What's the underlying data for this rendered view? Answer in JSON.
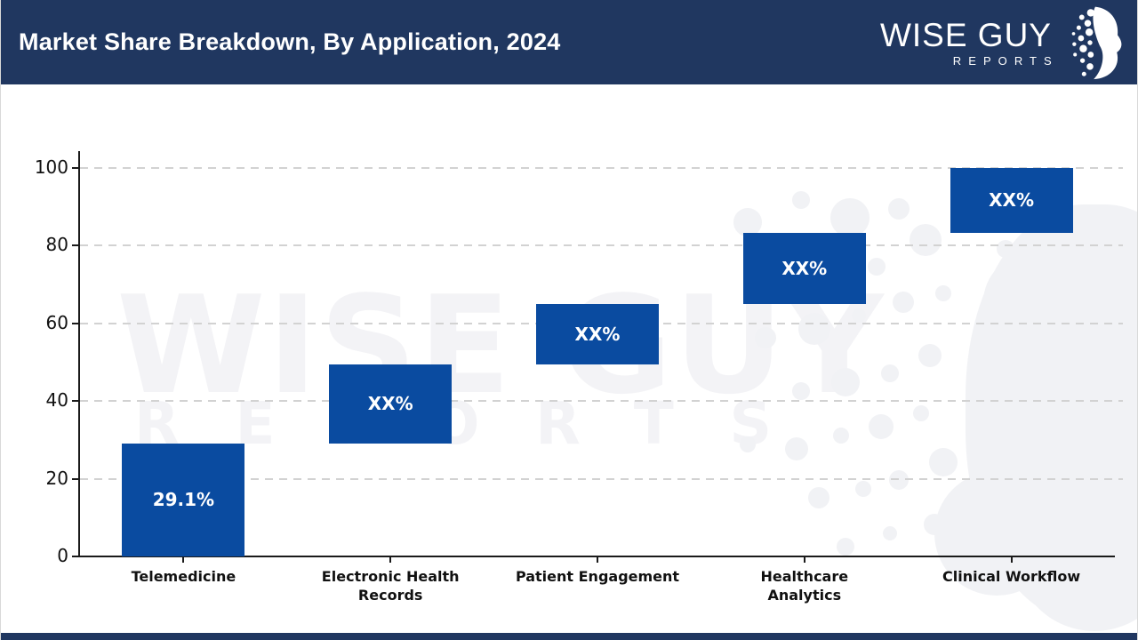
{
  "header": {
    "title": "Market Share Breakdown, By Application, 2024",
    "brand": {
      "line1": "WISE GUY",
      "line2": "REPORTS"
    }
  },
  "watermark": {
    "line1": "WISE GUY",
    "line2": "REPORTS"
  },
  "chart_data": {
    "type": "bar",
    "subtype": "waterfall",
    "title": "Market Share Breakdown, By Application, 2024",
    "categories": [
      "Telemedicine",
      "Electronic Health\nRecords",
      "Patient Engagement",
      "Healthcare\nAnalytics",
      "Clinical Workflow"
    ],
    "segments": [
      {
        "category": "Telemedicine",
        "start": 0,
        "end": 29.1,
        "label": "29.1%"
      },
      {
        "category": "Electronic Health Records",
        "start": 29.1,
        "end": 49.4,
        "label": "XX%"
      },
      {
        "category": "Patient Engagement",
        "start": 49.4,
        "end": 64.9,
        "label": "XX%"
      },
      {
        "category": "Healthcare Analytics",
        "start": 65.0,
        "end": 83.2,
        "label": "XX%"
      },
      {
        "category": "Clinical Workflow",
        "start": 83.2,
        "end": 100.0,
        "label": "XX%"
      }
    ],
    "yticks": [
      0,
      20,
      40,
      60,
      80,
      100
    ],
    "ylim": [
      0,
      105
    ],
    "xlabel": "",
    "ylabel": "",
    "grid": "horizontal-dashed",
    "legend": "none",
    "bar_color": "#0a4ba0",
    "bar_label_color": "#ffffff"
  },
  "colors": {
    "header_bg": "#203760",
    "footer_bg": "#203760",
    "bar": "#0a4ba0",
    "gridline": "#d2d2d2",
    "axis": "#1a1a1a",
    "watermark": "#f3f3f6"
  }
}
